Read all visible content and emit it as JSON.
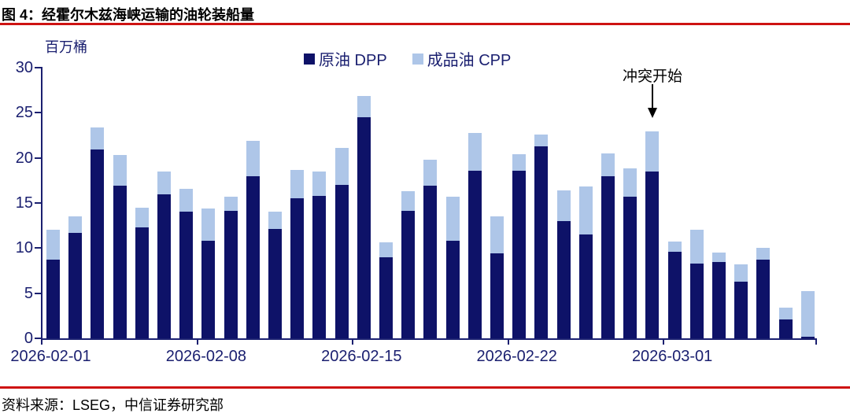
{
  "figure": {
    "title": "图 4：经霍尔木兹海峡运输的油轮装船量",
    "source": "资料来源：LSEG，中信证券研究部"
  },
  "colors": {
    "dpp_navy": "#0E1268",
    "cpp_lightblue": "#AEC6E8",
    "axis_navy": "#1B2070",
    "red_rule": "#CE1312",
    "annotation_black": "#000000"
  },
  "legend": {
    "items": [
      {
        "label": "原油 DPP",
        "color": "#0E1268"
      },
      {
        "label": "成品油 CPP",
        "color": "#AEC6E8"
      }
    ]
  },
  "annotation": {
    "label": "冲突开始",
    "target_date": "2026-02-28"
  },
  "chart_data": {
    "type": "bar",
    "stacked": true,
    "title": "经霍尔木兹海峡运输的油轮装船量",
    "xlabel": "",
    "ylabel": "百万桶",
    "ylim": [
      0,
      30
    ],
    "yticks": [
      0,
      5,
      10,
      15,
      20,
      25,
      30
    ],
    "grid": false,
    "legend_position": "top",
    "x_tick_labels": [
      "2026-02-01",
      "2026-02-08",
      "2026-02-15",
      "2026-02-22",
      "2026-03-01"
    ],
    "x_tick_day_indices": [
      0,
      7,
      14,
      21,
      28
    ],
    "categories": [
      "2026-02-01",
      "2026-02-02",
      "2026-02-03",
      "2026-02-04",
      "2026-02-05",
      "2026-02-06",
      "2026-02-07",
      "2026-02-08",
      "2026-02-09",
      "2026-02-10",
      "2026-02-11",
      "2026-02-12",
      "2026-02-13",
      "2026-02-14",
      "2026-02-15",
      "2026-02-16",
      "2026-02-17",
      "2026-02-18",
      "2026-02-19",
      "2026-02-20",
      "2026-02-21",
      "2026-02-22",
      "2026-02-23",
      "2026-02-24",
      "2026-02-25",
      "2026-02-26",
      "2026-02-27",
      "2026-02-28",
      "2026-03-01",
      "2026-03-02",
      "2026-03-03",
      "2026-03-04",
      "2026-03-05",
      "2026-03-06",
      "2026-03-07"
    ],
    "series": [
      {
        "name": "原油 DPP",
        "color": "#0E1268",
        "values": [
          8.7,
          11.7,
          20.9,
          16.9,
          12.3,
          16.0,
          14.0,
          10.8,
          14.1,
          18.0,
          12.1,
          15.5,
          15.8,
          17.0,
          24.5,
          9.0,
          14.1,
          16.9,
          10.8,
          18.6,
          9.4,
          18.6,
          21.3,
          13.0,
          11.5,
          18.0,
          15.7,
          18.5,
          9.6,
          8.3,
          8.5,
          6.3,
          8.7,
          2.1,
          0.2
        ]
      },
      {
        "name": "成品油 CPP",
        "color": "#AEC6E8",
        "values": [
          3.3,
          1.8,
          2.5,
          3.4,
          2.2,
          2.5,
          2.6,
          3.6,
          1.6,
          3.9,
          1.9,
          3.2,
          2.7,
          4.1,
          2.4,
          1.6,
          2.2,
          2.9,
          4.9,
          4.2,
          4.1,
          1.8,
          1.3,
          3.4,
          5.3,
          2.5,
          3.1,
          4.4,
          1.1,
          3.7,
          1.0,
          1.9,
          1.3,
          1.3,
          5.0
        ]
      }
    ]
  }
}
